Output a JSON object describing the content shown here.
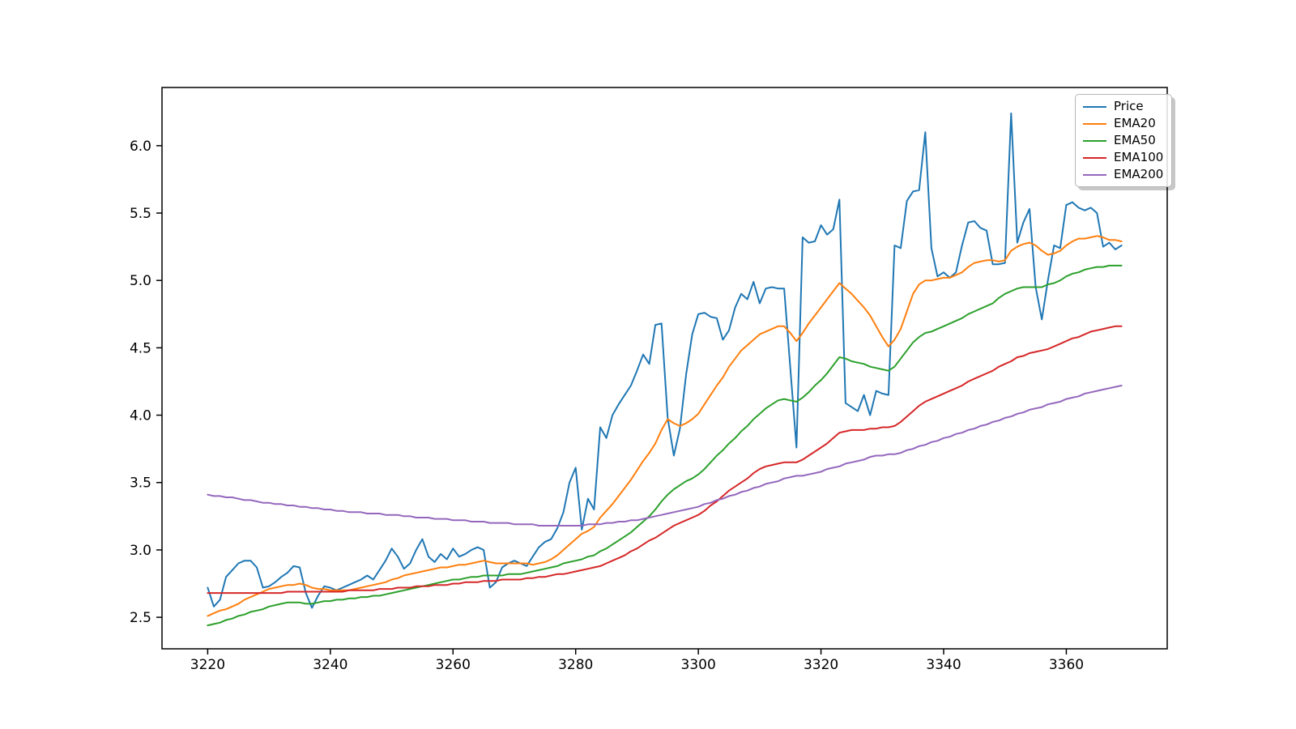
{
  "figure": {
    "background": "#ffffff",
    "axes_frame_color": "#000000",
    "tick_label_color": "#000000"
  },
  "chart_data": {
    "type": "line",
    "title": "",
    "xlabel": "",
    "ylabel": "",
    "grid": false,
    "xlim": [
      3212.55,
      3376.45
    ],
    "ylim": [
      2.266,
      6.432
    ],
    "xticks": [
      3220,
      3240,
      3260,
      3280,
      3300,
      3320,
      3340,
      3360
    ],
    "yticks": [
      2.5,
      3.0,
      3.5,
      4.0,
      4.5,
      5.0,
      5.5,
      6.0
    ],
    "legend": {
      "position": "upper right",
      "entries": [
        "Price",
        "EMA20",
        "EMA50",
        "EMA100",
        "EMA200"
      ]
    },
    "x_start": 3220,
    "x_step": 1,
    "series": [
      {
        "name": "Price",
        "color": "#1f77b4",
        "values": [
          2.72,
          2.58,
          2.63,
          2.8,
          2.85,
          2.9,
          2.92,
          2.92,
          2.87,
          2.72,
          2.73,
          2.76,
          2.8,
          2.83,
          2.88,
          2.87,
          2.68,
          2.57,
          2.66,
          2.73,
          2.72,
          2.7,
          2.72,
          2.74,
          2.76,
          2.78,
          2.81,
          2.78,
          2.85,
          2.92,
          3.01,
          2.95,
          2.86,
          2.9,
          3.0,
          3.08,
          2.95,
          2.91,
          2.97,
          2.93,
          3.01,
          2.95,
          2.97,
          3.0,
          3.02,
          3.0,
          2.72,
          2.76,
          2.87,
          2.9,
          2.92,
          2.9,
          2.88,
          2.95,
          3.02,
          3.06,
          3.08,
          3.16,
          3.28,
          3.5,
          3.61,
          3.15,
          3.38,
          3.3,
          3.91,
          3.83,
          4.0,
          4.08,
          4.15,
          4.22,
          4.33,
          4.45,
          4.38,
          4.67,
          4.68,
          3.98,
          3.7,
          3.9,
          4.3,
          4.6,
          4.75,
          4.76,
          4.73,
          4.72,
          4.56,
          4.63,
          4.8,
          4.9,
          4.86,
          4.99,
          4.83,
          4.94,
          4.95,
          4.94,
          4.94,
          4.35,
          3.76,
          5.32,
          5.28,
          5.29,
          5.41,
          5.34,
          5.38,
          5.6,
          4.09,
          4.06,
          4.03,
          4.15,
          4.0,
          4.18,
          4.16,
          4.15,
          5.26,
          5.24,
          5.59,
          5.66,
          5.67,
          6.1,
          5.24,
          5.03,
          5.06,
          5.02,
          5.06,
          5.26,
          5.43,
          5.44,
          5.39,
          5.37,
          5.12,
          5.12,
          5.13,
          6.24,
          5.28,
          5.43,
          5.53,
          4.95,
          4.71,
          5.0,
          5.26,
          5.24,
          5.56,
          5.58,
          5.54,
          5.52,
          5.54,
          5.5,
          5.25,
          5.28,
          5.23,
          5.26
        ]
      },
      {
        "name": "EMA20",
        "color": "#ff7f0e",
        "values": [
          2.51,
          2.53,
          2.55,
          2.56,
          2.58,
          2.6,
          2.63,
          2.65,
          2.67,
          2.69,
          2.71,
          2.72,
          2.73,
          2.74,
          2.74,
          2.75,
          2.74,
          2.72,
          2.71,
          2.71,
          2.7,
          2.7,
          2.7,
          2.7,
          2.71,
          2.72,
          2.73,
          2.74,
          2.75,
          2.76,
          2.78,
          2.79,
          2.81,
          2.82,
          2.83,
          2.84,
          2.85,
          2.86,
          2.87,
          2.87,
          2.88,
          2.89,
          2.89,
          2.9,
          2.91,
          2.92,
          2.91,
          2.9,
          2.9,
          2.9,
          2.9,
          2.9,
          2.9,
          2.89,
          2.9,
          2.91,
          2.93,
          2.96,
          3.0,
          3.04,
          3.08,
          3.12,
          3.14,
          3.17,
          3.24,
          3.29,
          3.34,
          3.4,
          3.46,
          3.52,
          3.59,
          3.66,
          3.72,
          3.79,
          3.89,
          3.97,
          3.94,
          3.92,
          3.94,
          3.97,
          4.01,
          4.08,
          4.15,
          4.22,
          4.28,
          4.36,
          4.42,
          4.48,
          4.52,
          4.56,
          4.6,
          4.62,
          4.64,
          4.66,
          4.66,
          4.61,
          4.55,
          4.61,
          4.68,
          4.74,
          4.8,
          4.86,
          4.92,
          4.98,
          4.94,
          4.9,
          4.85,
          4.8,
          4.74,
          4.66,
          4.58,
          4.51,
          4.56,
          4.64,
          4.77,
          4.9,
          4.97,
          5.0,
          5.0,
          5.01,
          5.02,
          5.02,
          5.04,
          5.06,
          5.1,
          5.13,
          5.14,
          5.15,
          5.15,
          5.14,
          5.15,
          5.22,
          5.25,
          5.27,
          5.28,
          5.26,
          5.22,
          5.19,
          5.2,
          5.22,
          5.26,
          5.29,
          5.31,
          5.31,
          5.32,
          5.33,
          5.32,
          5.3,
          5.3,
          5.29
        ]
      },
      {
        "name": "EMA50",
        "color": "#2ca02c",
        "values": [
          2.44,
          2.45,
          2.46,
          2.48,
          2.49,
          2.51,
          2.52,
          2.54,
          2.55,
          2.56,
          2.58,
          2.59,
          2.6,
          2.61,
          2.61,
          2.61,
          2.6,
          2.6,
          2.61,
          2.62,
          2.62,
          2.63,
          2.63,
          2.64,
          2.64,
          2.65,
          2.65,
          2.66,
          2.66,
          2.67,
          2.68,
          2.69,
          2.7,
          2.71,
          2.72,
          2.73,
          2.74,
          2.75,
          2.76,
          2.77,
          2.78,
          2.78,
          2.79,
          2.8,
          2.8,
          2.81,
          2.81,
          2.81,
          2.81,
          2.82,
          2.82,
          2.82,
          2.83,
          2.84,
          2.85,
          2.86,
          2.87,
          2.88,
          2.9,
          2.91,
          2.92,
          2.93,
          2.95,
          2.96,
          2.99,
          3.01,
          3.04,
          3.07,
          3.1,
          3.13,
          3.17,
          3.21,
          3.25,
          3.3,
          3.36,
          3.41,
          3.45,
          3.48,
          3.51,
          3.53,
          3.56,
          3.6,
          3.65,
          3.7,
          3.74,
          3.79,
          3.83,
          3.88,
          3.92,
          3.97,
          4.01,
          4.05,
          4.08,
          4.11,
          4.12,
          4.11,
          4.1,
          4.13,
          4.17,
          4.22,
          4.26,
          4.31,
          4.37,
          4.43,
          4.42,
          4.4,
          4.39,
          4.38,
          4.36,
          4.35,
          4.34,
          4.33,
          4.36,
          4.42,
          4.48,
          4.54,
          4.58,
          4.61,
          4.62,
          4.64,
          4.66,
          4.68,
          4.7,
          4.72,
          4.75,
          4.77,
          4.79,
          4.81,
          4.83,
          4.87,
          4.9,
          4.92,
          4.94,
          4.95,
          4.95,
          4.95,
          4.95,
          4.97,
          4.98,
          5.0,
          5.03,
          5.05,
          5.06,
          5.08,
          5.09,
          5.1,
          5.1,
          5.11,
          5.11,
          5.11
        ]
      },
      {
        "name": "EMA100",
        "color": "#d62728",
        "values": [
          2.68,
          2.68,
          2.68,
          2.68,
          2.68,
          2.68,
          2.68,
          2.68,
          2.68,
          2.68,
          2.68,
          2.68,
          2.68,
          2.69,
          2.69,
          2.69,
          2.69,
          2.69,
          2.69,
          2.69,
          2.69,
          2.69,
          2.69,
          2.7,
          2.7,
          2.7,
          2.7,
          2.7,
          2.71,
          2.71,
          2.71,
          2.72,
          2.72,
          2.72,
          2.73,
          2.73,
          2.73,
          2.74,
          2.74,
          2.74,
          2.75,
          2.75,
          2.76,
          2.76,
          2.76,
          2.77,
          2.77,
          2.77,
          2.78,
          2.78,
          2.78,
          2.78,
          2.79,
          2.79,
          2.8,
          2.8,
          2.81,
          2.82,
          2.82,
          2.83,
          2.84,
          2.85,
          2.86,
          2.87,
          2.88,
          2.9,
          2.92,
          2.94,
          2.96,
          2.99,
          3.01,
          3.04,
          3.07,
          3.09,
          3.12,
          3.15,
          3.18,
          3.2,
          3.22,
          3.24,
          3.26,
          3.29,
          3.33,
          3.36,
          3.4,
          3.44,
          3.47,
          3.5,
          3.53,
          3.57,
          3.6,
          3.62,
          3.63,
          3.64,
          3.65,
          3.65,
          3.65,
          3.67,
          3.7,
          3.73,
          3.76,
          3.79,
          3.83,
          3.87,
          3.88,
          3.89,
          3.89,
          3.89,
          3.9,
          3.9,
          3.91,
          3.91,
          3.92,
          3.95,
          3.99,
          4.03,
          4.07,
          4.1,
          4.12,
          4.14,
          4.16,
          4.18,
          4.2,
          4.22,
          4.25,
          4.27,
          4.29,
          4.31,
          4.33,
          4.36,
          4.38,
          4.4,
          4.43,
          4.44,
          4.46,
          4.47,
          4.48,
          4.49,
          4.51,
          4.53,
          4.55,
          4.57,
          4.58,
          4.6,
          4.62,
          4.63,
          4.64,
          4.65,
          4.66,
          4.66
        ]
      },
      {
        "name": "EMA200",
        "color": "#9467bd",
        "values": [
          3.41,
          3.4,
          3.4,
          3.39,
          3.39,
          3.38,
          3.37,
          3.37,
          3.36,
          3.35,
          3.35,
          3.34,
          3.34,
          3.33,
          3.33,
          3.32,
          3.32,
          3.31,
          3.31,
          3.3,
          3.3,
          3.29,
          3.29,
          3.28,
          3.28,
          3.28,
          3.27,
          3.27,
          3.27,
          3.26,
          3.26,
          3.26,
          3.25,
          3.25,
          3.24,
          3.24,
          3.24,
          3.23,
          3.23,
          3.23,
          3.22,
          3.22,
          3.22,
          3.21,
          3.21,
          3.21,
          3.2,
          3.2,
          3.2,
          3.2,
          3.19,
          3.19,
          3.19,
          3.19,
          3.18,
          3.18,
          3.18,
          3.18,
          3.18,
          3.18,
          3.18,
          3.18,
          3.19,
          3.19,
          3.19,
          3.2,
          3.2,
          3.21,
          3.21,
          3.22,
          3.22,
          3.23,
          3.24,
          3.25,
          3.26,
          3.27,
          3.28,
          3.29,
          3.3,
          3.31,
          3.32,
          3.34,
          3.35,
          3.37,
          3.38,
          3.4,
          3.41,
          3.43,
          3.44,
          3.46,
          3.47,
          3.49,
          3.5,
          3.51,
          3.53,
          3.54,
          3.55,
          3.55,
          3.56,
          3.57,
          3.58,
          3.6,
          3.61,
          3.62,
          3.64,
          3.65,
          3.66,
          3.67,
          3.69,
          3.7,
          3.7,
          3.71,
          3.71,
          3.72,
          3.74,
          3.75,
          3.77,
          3.78,
          3.8,
          3.81,
          3.83,
          3.84,
          3.86,
          3.87,
          3.89,
          3.9,
          3.92,
          3.93,
          3.95,
          3.96,
          3.98,
          3.99,
          4.01,
          4.02,
          4.04,
          4.05,
          4.06,
          4.08,
          4.09,
          4.1,
          4.12,
          4.13,
          4.14,
          4.16,
          4.17,
          4.18,
          4.19,
          4.2,
          4.21,
          4.22
        ]
      }
    ]
  }
}
